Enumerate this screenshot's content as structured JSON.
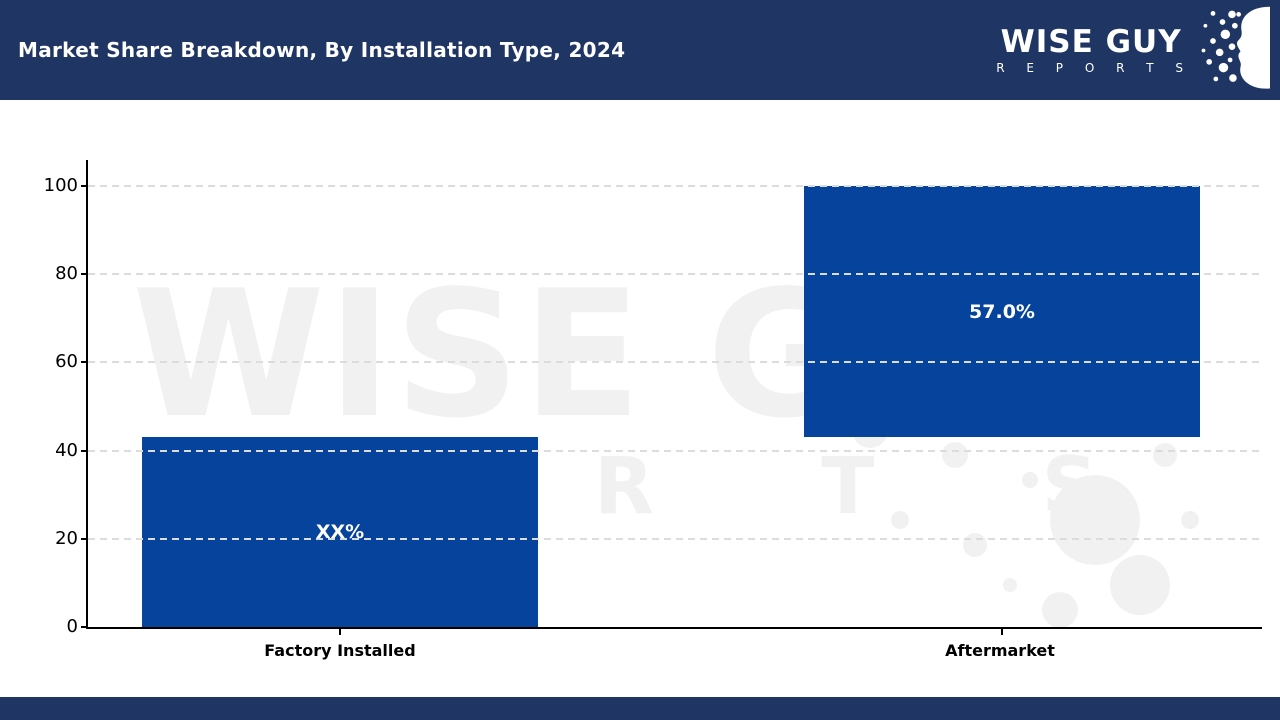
{
  "header": {
    "title": "Market Share Breakdown, By Installation Type, 2024",
    "logo": {
      "line1": "WISE GUY",
      "line2": "R E P O R T S"
    }
  },
  "watermark": {
    "line1": "WISE GUY",
    "line2": "R T S"
  },
  "chart_data": {
    "type": "bar",
    "subtype": "stacked-waterfall",
    "title": "Market Share Breakdown, By Installation Type, 2024",
    "categories": [
      "Factory Installed",
      "Aftermarket"
    ],
    "bars": [
      {
        "category": "Factory Installed",
        "label": "XX%",
        "start": 0,
        "end": 43
      },
      {
        "category": "Aftermarket",
        "label": "57.0%",
        "start": 43,
        "end": 100
      }
    ],
    "values_note": "Factory Installed value masked as XX%; Aftermarket = 57.0%",
    "yticks": [
      0,
      20,
      40,
      60,
      80,
      100
    ],
    "ylim": [
      0,
      100
    ],
    "xlabel": "",
    "ylabel": "",
    "grid": "horizontal-dashed",
    "legend": "none"
  },
  "colors": {
    "header_bg": "#1f3563",
    "footer_bg": "#1f3563",
    "bar": "#06439c",
    "grid": "#dcdcdc",
    "axis": "#000000",
    "tick_text": "#000000",
    "bar_label_text": "#ffffff",
    "title_text": "#ffffff",
    "watermark": "#f1f1f1"
  }
}
